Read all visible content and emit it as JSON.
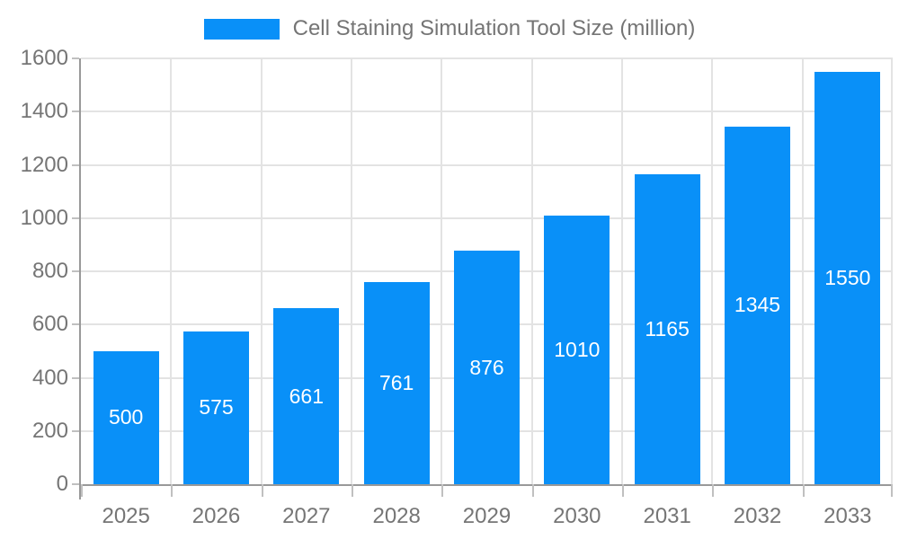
{
  "legend": {
    "label": "Cell Staining Simulation Tool Size (million)",
    "swatch_color": "#0990f8"
  },
  "chart_data": {
    "type": "bar",
    "title": "Cell Staining Simulation Tool Size (million)",
    "categories": [
      "2025",
      "2026",
      "2027",
      "2028",
      "2029",
      "2030",
      "2031",
      "2032",
      "2033"
    ],
    "values": [
      500,
      575,
      661,
      761,
      876,
      1010,
      1165,
      1345,
      1550
    ],
    "series": [
      {
        "name": "Cell Staining Simulation Tool Size (million)",
        "values": [
          500,
          575,
          661,
          761,
          876,
          1010,
          1165,
          1345,
          1550
        ]
      }
    ],
    "yticks": [
      0,
      200,
      400,
      600,
      800,
      1000,
      1200,
      1400,
      1600
    ],
    "ylim": [
      0,
      1600
    ],
    "xlabel": "",
    "ylabel": "",
    "grid": true,
    "legend_position": "top-center",
    "value_label_position": "inside-center",
    "colors": {
      "bar": "#0990f8",
      "value_label": "#ffffff",
      "axis_line": "#999999",
      "grid_line": "#e3e3e3",
      "tick": "#c0c0c0",
      "text": "#757575",
      "background": "#ffffff"
    }
  }
}
